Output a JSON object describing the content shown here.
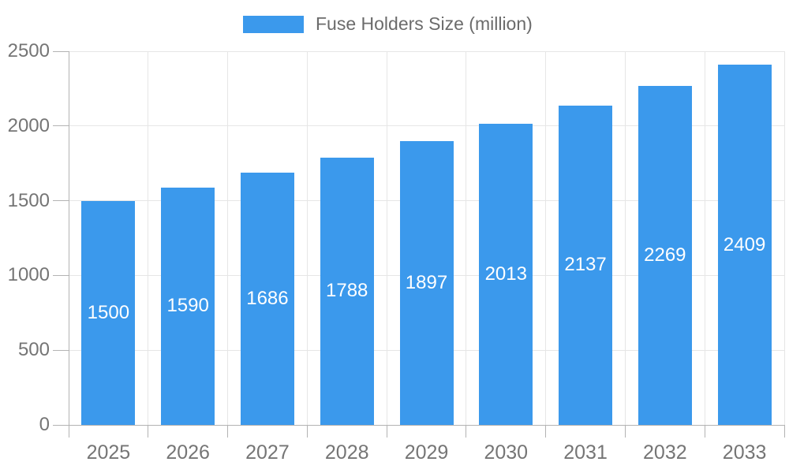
{
  "legend": {
    "label": "Fuse Holders Size (million)"
  },
  "chart_data": {
    "type": "bar",
    "title": "",
    "series_name": "Fuse Holders Size (million)",
    "categories": [
      "2025",
      "2026",
      "2027",
      "2028",
      "2029",
      "2030",
      "2031",
      "2032",
      "2033"
    ],
    "values": [
      1500,
      1590,
      1686,
      1788,
      1897,
      2013,
      2137,
      2269,
      2409
    ],
    "xlabel": "",
    "ylabel": "",
    "ylim": [
      0,
      2500
    ],
    "yticks": [
      0,
      500,
      1000,
      1500,
      2000,
      2500
    ],
    "grid": true,
    "legend_position": "top-center",
    "value_labels": "inside-center",
    "colors": {
      "bar": "#3b99ec",
      "value_label": "#ffffff",
      "axis_text": "#757575",
      "legend_text": "#6b6b6b",
      "gridline": "#e6e6e6",
      "axis_line": "#b3b3b3",
      "background": "#ffffff"
    }
  }
}
